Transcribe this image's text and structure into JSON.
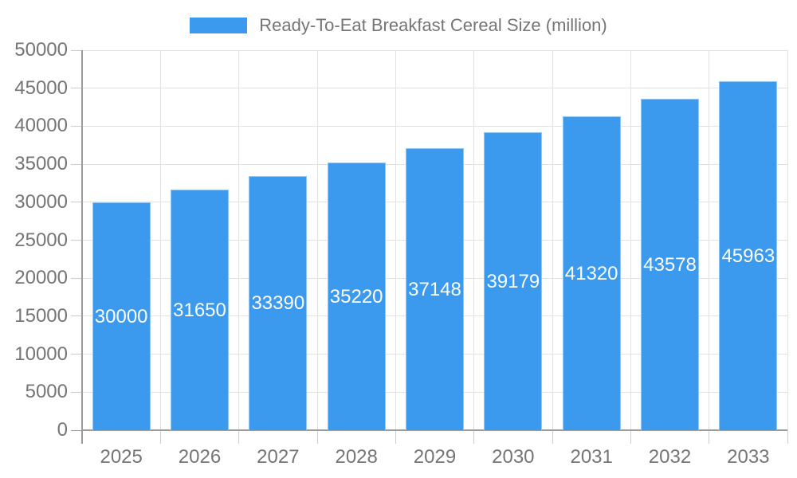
{
  "legend": {
    "label": "Ready-To-Eat Breakfast Cereal Size (million)",
    "swatch_color": "#3B99EE"
  },
  "chart_data": {
    "type": "bar",
    "title": "Ready-To-Eat Breakfast Cereal Size (million)",
    "categories": [
      "2025",
      "2026",
      "2027",
      "2028",
      "2029",
      "2030",
      "2031",
      "2032",
      "2033"
    ],
    "values": [
      30000,
      31650,
      33390,
      35220,
      37148,
      39179,
      41320,
      43578,
      45963
    ],
    "bar_labels": [
      "30000",
      "31650",
      "33390",
      "35220",
      "37148",
      "39179",
      "41320",
      "43578",
      "45963"
    ],
    "series_name": "Ready-To-Eat Breakfast Cereal Size (million)",
    "xlabel": "",
    "ylabel": "",
    "ylim": [
      0,
      50000
    ],
    "ytick_step": 5000,
    "ytick_labels": [
      "0",
      "5000",
      "10000",
      "15000",
      "20000",
      "25000",
      "30000",
      "35000",
      "40000",
      "45000",
      "50000"
    ],
    "grid": true,
    "legend_position": "top",
    "colors": {
      "bar": "#3B99EE",
      "bar_label": "#FFFFFF",
      "grid": "#E2E2E2",
      "axis": "#9C9C9C",
      "tick": "#CCCCCC",
      "text": "#757575",
      "background": "#FFFFFF"
    }
  }
}
